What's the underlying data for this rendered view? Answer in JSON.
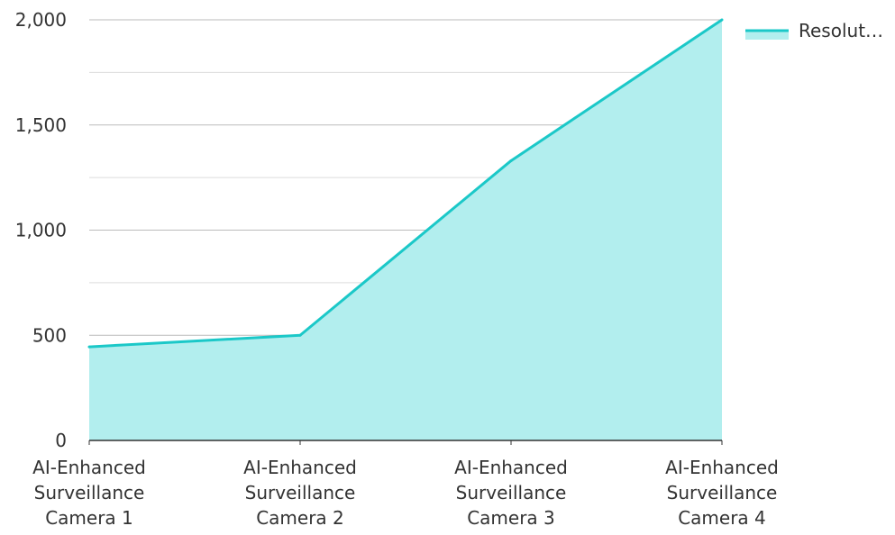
{
  "colors": {
    "line": "#1bc8c8",
    "area": "#b2eeee",
    "grid_major": "#bbbbbb",
    "grid_minor": "#dddddd",
    "axis": "#333333",
    "text": "#333333"
  },
  "chart_data": {
    "type": "area",
    "categories": [
      [
        "AI-Enhanced",
        "Surveillance",
        "Camera 1"
      ],
      [
        "AI-Enhanced",
        "Surveillance",
        "Camera 2"
      ],
      [
        "AI-Enhanced",
        "Surveillance",
        "Camera 3"
      ],
      [
        "AI-Enhanced",
        "Surveillance",
        "Camera 4"
      ]
    ],
    "series": [
      {
        "name": "Resolut…",
        "values": [
          445,
          500,
          1330,
          2000
        ]
      }
    ],
    "ylim": [
      0,
      2000
    ],
    "yticks": [
      0,
      500,
      1000,
      1500,
      2000
    ],
    "ytick_labels": [
      "0",
      "500",
      "1,000",
      "1,500",
      "2,000"
    ],
    "minor_gridlines": [
      250,
      750,
      1250,
      1750
    ],
    "grid": true,
    "legend_position": "top-right"
  }
}
